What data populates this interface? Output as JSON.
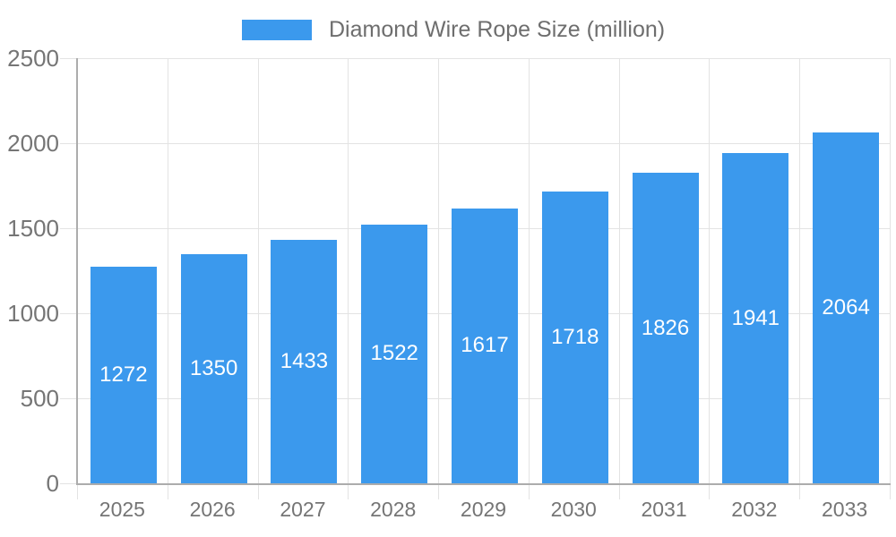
{
  "legend": {
    "items": [
      {
        "label": "Diamond Wire Rope Size (million)",
        "color": "#3b99ed"
      }
    ]
  },
  "colors": {
    "bar": "#3b99ed",
    "grid": "#e3e3e3",
    "axis": "#acacac",
    "axis_text": "#757575",
    "bar_label_text": "#ffffff",
    "legend_text": "#6e6e6e",
    "background": "#ffffff"
  },
  "chart_data": {
    "type": "bar",
    "title": "Diamond Wire Rope Size (million)",
    "categories": [
      "2025",
      "2026",
      "2027",
      "2028",
      "2029",
      "2030",
      "2031",
      "2032",
      "2033"
    ],
    "series": [
      {
        "name": "Diamond Wire Rope Size (million)",
        "values": [
          1272,
          1350,
          1433,
          1522,
          1617,
          1718,
          1826,
          1941,
          2064
        ],
        "color": "#3b99ed"
      }
    ],
    "bar_labels": [
      1272,
      1350,
      1433,
      1522,
      1617,
      1718,
      1826,
      1941,
      2064
    ],
    "xlabel": "",
    "ylabel": "",
    "ylim": [
      0,
      2500
    ],
    "ytick_interval": 500,
    "yticks": [
      0,
      500,
      1000,
      1500,
      2000,
      2500
    ],
    "grid": true,
    "legend_position": "top"
  }
}
